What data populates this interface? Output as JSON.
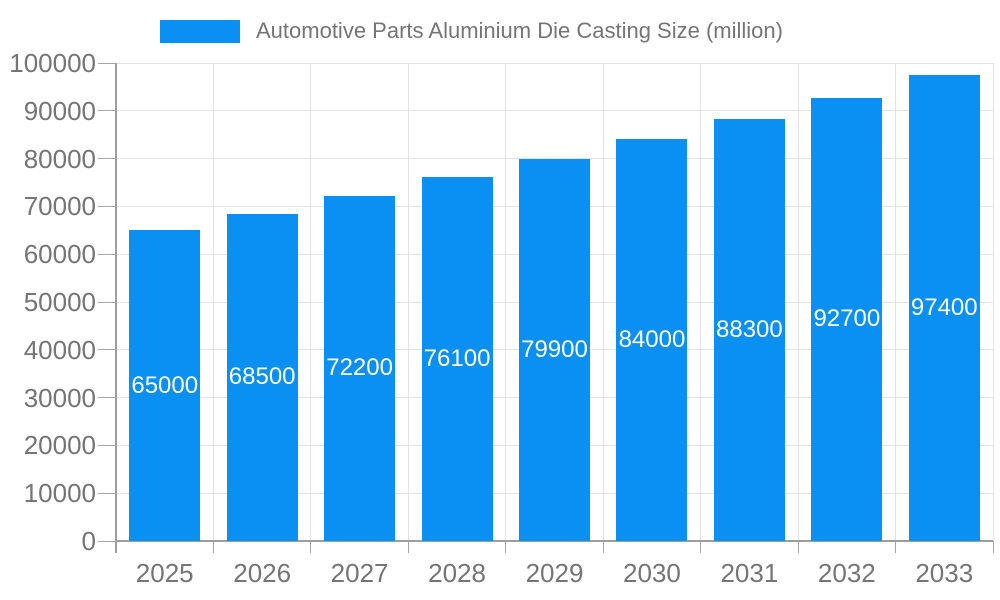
{
  "chart_data": {
    "type": "bar",
    "title": "Automotive Parts Aluminium Die Casting Size (million)",
    "categories": [
      "2025",
      "2026",
      "2027",
      "2028",
      "2029",
      "2030",
      "2031",
      "2032",
      "2033"
    ],
    "values": [
      65000,
      68500,
      72200,
      76100,
      79900,
      84000,
      88300,
      92700,
      97400
    ],
    "bar_value_labels": [
      "65000",
      "68500",
      "72200",
      "76100",
      "79900",
      "84000",
      "88300",
      "92700",
      "97400"
    ],
    "xlabel": "",
    "ylabel": "",
    "ylim": [
      0,
      100000
    ],
    "y_ticks": [
      0,
      10000,
      20000,
      30000,
      40000,
      50000,
      60000,
      70000,
      80000,
      90000,
      100000
    ],
    "y_tick_labels": [
      "0",
      "10000",
      "20000",
      "30000",
      "40000",
      "50000",
      "60000",
      "70000",
      "80000",
      "90000",
      "100000"
    ],
    "grid": "on",
    "legend_position": "top",
    "colors": {
      "bar": "#0A8FF2",
      "text": "#757575",
      "bar_label_text": "#FFFFFF",
      "gridline": "#E3E3E3",
      "axis_line": "#9E9E9E",
      "tick_mark": "#A6A6A6",
      "background": "#FFFFFF"
    }
  }
}
